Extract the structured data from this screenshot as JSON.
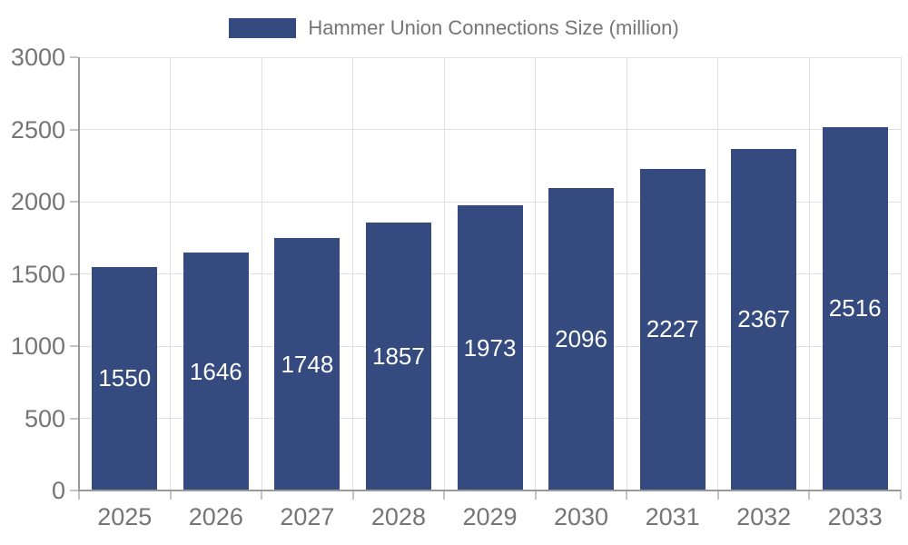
{
  "legend": {
    "label": "Hammer Union Connections Size (million)"
  },
  "chart_data": {
    "type": "bar",
    "title": "Hammer Union Connections Size (million)",
    "categories": [
      "2025",
      "2026",
      "2027",
      "2028",
      "2029",
      "2030",
      "2031",
      "2032",
      "2033"
    ],
    "values": [
      1550,
      1646,
      1748,
      1857,
      1973,
      2096,
      2227,
      2367,
      2516
    ],
    "xlabel": "",
    "ylabel": "",
    "ylim": [
      0,
      3000
    ],
    "yticks": [
      0,
      500,
      1000,
      1500,
      2000,
      2500,
      3000
    ],
    "grid": true,
    "legend_position": "top",
    "value_labels": "inside-center",
    "colors": {
      "bar": "#354B80",
      "value_label": "#FFFFFF",
      "axis_label": "#757575",
      "legend_label": "#757575",
      "grid_line": "#E0E0E0",
      "axis_line": "#999999",
      "tick_line": "#C4C4C4",
      "background": "#FFFFFF"
    }
  }
}
